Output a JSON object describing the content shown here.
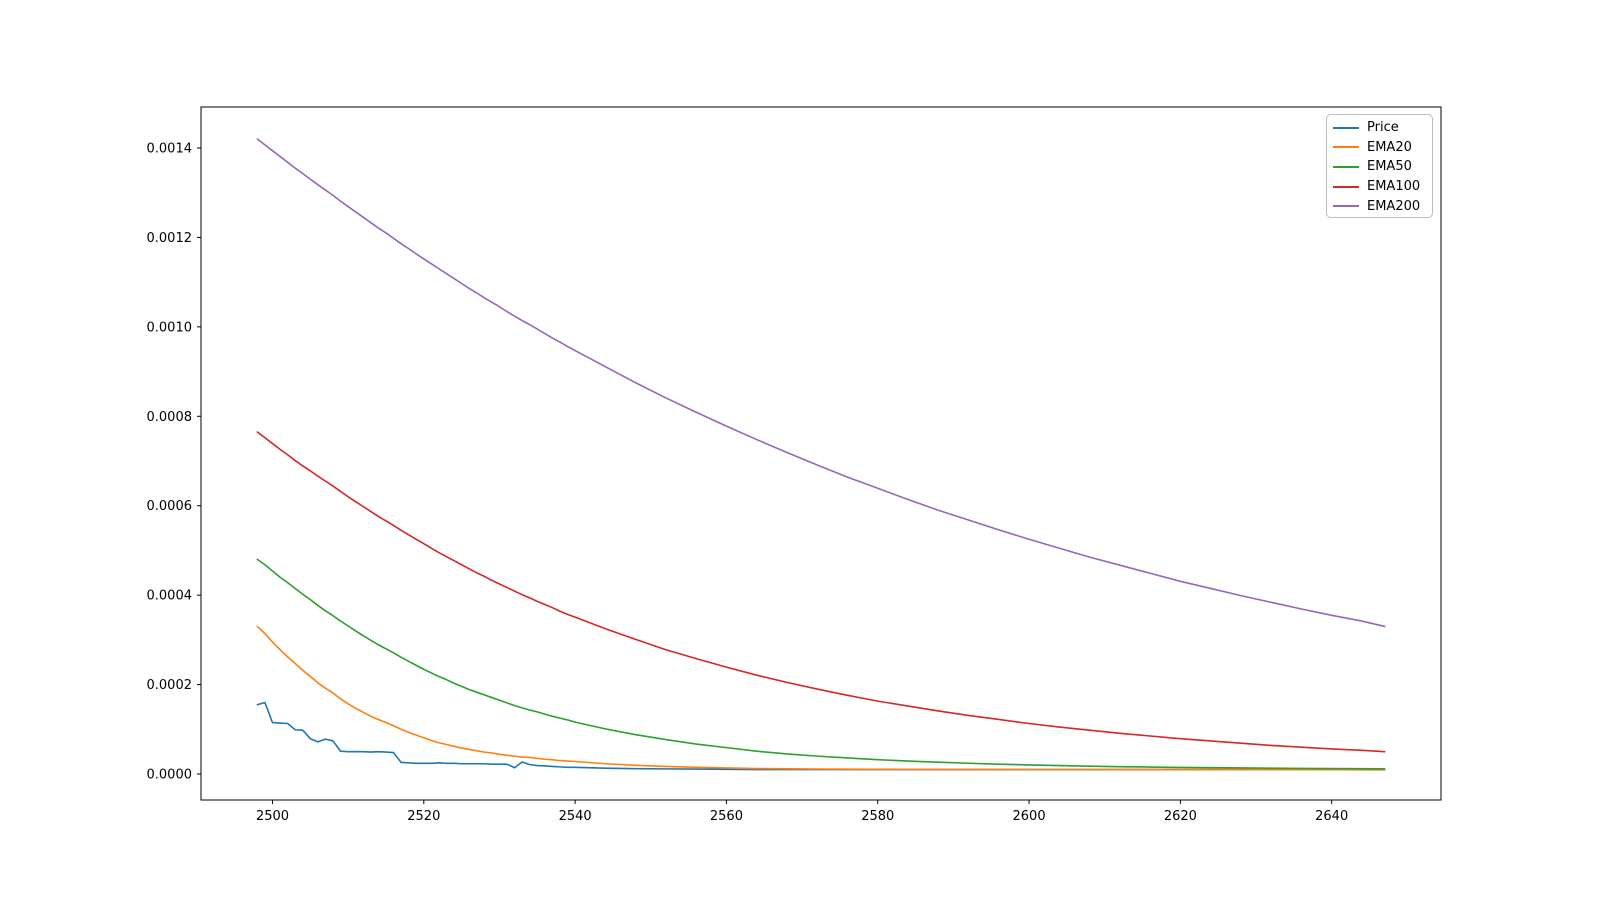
{
  "figure": {
    "background_color": "#ffffff",
    "frame_color": "#000000",
    "tick_label_color": "#000000",
    "legend_border_color": "#bcbcbc"
  },
  "chart_data": {
    "type": "line",
    "title": "",
    "xlabel": "",
    "ylabel": "",
    "grid": false,
    "legend_position": "upper-right",
    "xlim": [
      2490.55,
      2654.45
    ],
    "ylim": [
      -5.81e-05,
      0.0014917
    ],
    "x_ticks": {
      "values": [
        2500,
        2520,
        2540,
        2560,
        2580,
        2600,
        2620,
        2640
      ],
      "labels": [
        "2500",
        "2520",
        "2540",
        "2560",
        "2580",
        "2600",
        "2620",
        "2640"
      ]
    },
    "y_ticks": {
      "values": [
        0.0,
        0.0002,
        0.0004,
        0.0006,
        0.0008,
        0.001,
        0.0012,
        0.0014
      ],
      "labels": [
        "0.0000",
        "0.0002",
        "0.0004",
        "0.0006",
        "0.0008",
        "0.0010",
        "0.0012",
        "0.0014"
      ]
    },
    "value_scale_to_y": 1e-06,
    "x": [
      2498,
      2499,
      2500,
      2501,
      2502,
      2503,
      2504,
      2505,
      2506,
      2507,
      2508,
      2509,
      2510,
      2511,
      2512,
      2513,
      2514,
      2515,
      2516,
      2517,
      2518,
      2519,
      2520,
      2521,
      2522,
      2523,
      2524,
      2525,
      2526,
      2527,
      2528,
      2529,
      2530,
      2531,
      2532,
      2533,
      2534,
      2535,
      2536,
      2537,
      2538,
      2539,
      2540,
      2544,
      2548,
      2552,
      2556,
      2560,
      2564,
      2568,
      2572,
      2576,
      2580,
      2584,
      2588,
      2592,
      2596,
      2600,
      2604,
      2608,
      2612,
      2616,
      2620,
      2624,
      2628,
      2632,
      2636,
      2640,
      2644,
      2647
    ],
    "series": [
      {
        "name": "Price",
        "color": "#1f77b4",
        "values_micro": [
          155,
          160,
          115,
          114,
          113,
          99,
          98,
          79,
          72,
          78,
          74,
          51,
          50,
          50,
          50,
          49,
          50,
          49,
          48,
          26,
          25,
          24,
          24,
          24,
          25,
          24,
          24,
          23,
          23,
          23,
          23,
          22,
          22,
          22,
          14,
          27,
          21,
          19,
          18,
          17,
          16,
          15,
          15,
          13,
          12,
          11.5,
          11,
          10.5,
          10,
          10,
          10,
          10,
          10,
          10,
          10,
          10,
          10,
          10,
          10,
          10,
          10,
          10,
          10,
          10,
          10,
          10,
          10,
          10,
          9.5,
          9.5
        ]
      },
      {
        "name": "EMA20",
        "color": "#ff7f0e",
        "values_micro": [
          330,
          314,
          295,
          278,
          262,
          247,
          232,
          218,
          204,
          192,
          181,
          168,
          157,
          147,
          138,
          129,
          122,
          115,
          108,
          100,
          93,
          87,
          81,
          75,
          70,
          66,
          62,
          58,
          55,
          52,
          49,
          47,
          44,
          42,
          40,
          38,
          37,
          35,
          33,
          32,
          30,
          29,
          28,
          23,
          19.5,
          17,
          15,
          13.5,
          12.3,
          11.6,
          11.1,
          10.8,
          10.6,
          10.4,
          10.3,
          10.2,
          10.2,
          10.1,
          10.1,
          10.1,
          10,
          10,
          10,
          10,
          10,
          10,
          10,
          10,
          9.8,
          9.7
        ]
      },
      {
        "name": "EMA50",
        "color": "#2ca02c",
        "values_micro": [
          480,
          468,
          454,
          440,
          428,
          415,
          402,
          390,
          377,
          365,
          354,
          342,
          331,
          320,
          309,
          299,
          289,
          280,
          271,
          261,
          252,
          243,
          234,
          226,
          218,
          211,
          203,
          196,
          189,
          183,
          177,
          171,
          165,
          159,
          153,
          148,
          143,
          139,
          134,
          129,
          125,
          121,
          116,
          101,
          88,
          77,
          67,
          59,
          51,
          45,
          40,
          36,
          32,
          29,
          26.4,
          24.1,
          22.1,
          20.4,
          18.9,
          17.6,
          16.5,
          15.6,
          14.8,
          14.1,
          13.5,
          13,
          12.6,
          12.2,
          11.9,
          11.6
        ]
      },
      {
        "name": "EMA100",
        "color": "#d62728",
        "values_micro": [
          765,
          752,
          739,
          726,
          714,
          701,
          689,
          678,
          666,
          655,
          644,
          632,
          620,
          609,
          598,
          587,
          576,
          566,
          556,
          545,
          535,
          525,
          515,
          505,
          495,
          486,
          477,
          468,
          459,
          450,
          442,
          433,
          425,
          417,
          409,
          401,
          394,
          386,
          379,
          372,
          364,
          357,
          351,
          325,
          301,
          278,
          258,
          239,
          221,
          205,
          190,
          176,
          163,
          152,
          141,
          131,
          122,
          113,
          105,
          98,
          91,
          85,
          79,
          74,
          69,
          64,
          60,
          56,
          53,
          50
        ]
      },
      {
        "name": "EMA200",
        "color": "#9467bd",
        "values_micro": [
          1420,
          1407,
          1394,
          1381,
          1368,
          1355,
          1343,
          1330,
          1318,
          1306,
          1294,
          1281,
          1269,
          1257,
          1245,
          1233,
          1221,
          1210,
          1198,
          1186,
          1175,
          1163,
          1152,
          1141,
          1130,
          1119,
          1108,
          1097,
          1086,
          1076,
          1065,
          1055,
          1045,
          1034,
          1024,
          1014,
          1005,
          995,
          985,
          975,
          966,
          956,
          947,
          911,
          875,
          841,
          809,
          778,
          748,
          719,
          691,
          664,
          639,
          614,
          590,
          568,
          546,
          525,
          505,
          485,
          467,
          449,
          431,
          415,
          399,
          384,
          369,
          355,
          342,
          330
        ]
      }
    ]
  }
}
